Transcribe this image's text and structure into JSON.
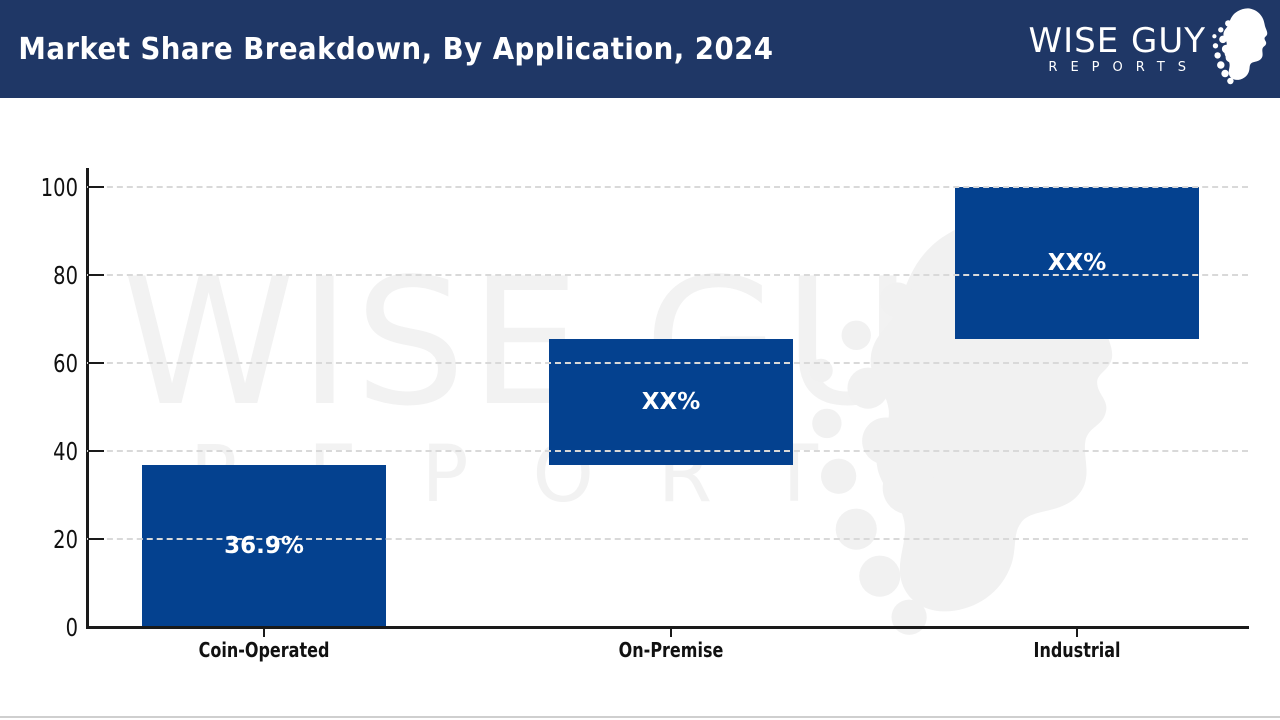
{
  "header": {
    "title": "Market Share Breakdown, By Application, 2024",
    "logo": {
      "line1": "WISE GUY",
      "line2": "REPORTS"
    }
  },
  "watermark": {
    "line1": "WISE GUY",
    "line2": "REPORTS"
  },
  "chart_data": {
    "type": "bar",
    "subtype": "stepped-waterfall",
    "title": "Market Share Breakdown, By Application, 2024",
    "categories": [
      "Coin-Operated",
      "On-Premise",
      "Industrial"
    ],
    "bars": [
      {
        "category": "Coin-Operated",
        "start": 0,
        "end": 36.9,
        "label": "36.9%"
      },
      {
        "category": "On-Premise",
        "start": 36.9,
        "end": 65.5,
        "label": "XX%"
      },
      {
        "category": "Industrial",
        "start": 65.5,
        "end": 100,
        "label": "XX%"
      }
    ],
    "xlabel": "",
    "ylabel": "",
    "ylim": [
      0,
      100
    ],
    "yticks": [
      0,
      20,
      40,
      60,
      80,
      100
    ],
    "grid": "horizontal-dashed",
    "legend": "none",
    "bar_color": "#04418f"
  },
  "colors": {
    "header_bg": "#1f3766",
    "bar": "#04418f",
    "grid": "#d9d9d9",
    "axis": "#1a1a1a",
    "watermark": "#f2f2f2"
  }
}
